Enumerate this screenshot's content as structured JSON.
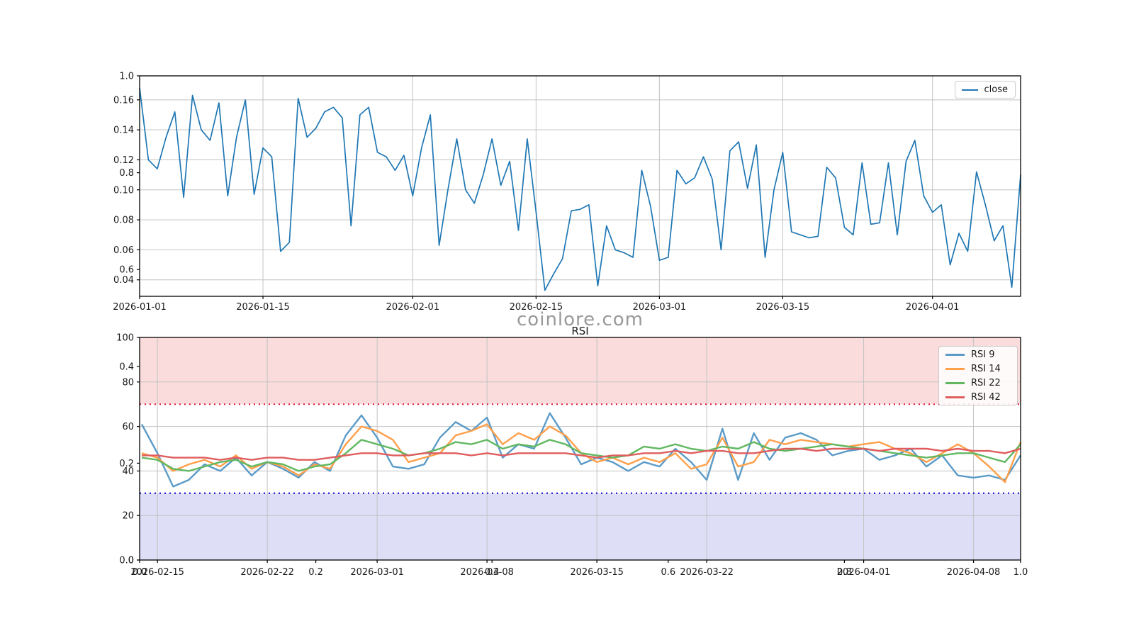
{
  "watermark_text": "coinlore.com",
  "colors": {
    "close_line": "#1f77b4",
    "rsi9": "#5B9BC8",
    "rsi14": "#FF9F4A",
    "rsi22": "#61B861",
    "rsi42": "#E05D5E",
    "overbought_dotted": "#DC143C",
    "oversold_dotted": "#0000CC",
    "overbought_band": "#FADCDC",
    "oversold_band": "#DEDEF6",
    "grid": "#C3C3C3",
    "spine": "#000000",
    "tick_text": "#1a1a1a",
    "watermark": "#999999"
  },
  "overlay_axis": {
    "x_labels": [
      "0.0",
      "0.2",
      "0.4",
      "0.6",
      "0.8",
      "1.0"
    ],
    "y_labels": [
      "0.0",
      "0.2",
      "0.4",
      "0.6",
      "0.8",
      "1.0"
    ]
  },
  "chart_data": [
    {
      "type": "line",
      "name": "price-chart",
      "legend": [
        {
          "label": "close"
        }
      ],
      "x_start_date": "2026-01-01",
      "x_ticks": [
        {
          "day": 0,
          "label": "2026-01-01"
        },
        {
          "day": 14,
          "label": "2026-01-15"
        },
        {
          "day": 31,
          "label": "2026-02-01"
        },
        {
          "day": 45,
          "label": "2026-02-15"
        },
        {
          "day": 59,
          "label": "2026-03-01"
        },
        {
          "day": 73,
          "label": "2026-03-15"
        },
        {
          "day": 90,
          "label": "2026-04-01"
        }
      ],
      "y_ticks": [
        {
          "v": 0.04,
          "label": "0.04"
        },
        {
          "v": 0.06,
          "label": "0.06"
        },
        {
          "v": 0.08,
          "label": "0.08"
        },
        {
          "v": 0.1,
          "label": "0.10"
        },
        {
          "v": 0.12,
          "label": "0.12"
        },
        {
          "v": 0.14,
          "label": "0.14"
        },
        {
          "v": 0.16,
          "label": "0.16"
        }
      ],
      "ylim": [
        0.029,
        0.176
      ],
      "x_days_range": [
        0,
        100
      ],
      "grid": true,
      "series": [
        {
          "name": "close",
          "values": [
            0.168,
            0.12,
            0.114,
            0.135,
            0.152,
            0.095,
            0.163,
            0.14,
            0.133,
            0.158,
            0.096,
            0.135,
            0.16,
            0.097,
            0.128,
            0.122,
            0.059,
            0.065,
            0.161,
            0.135,
            0.141,
            0.152,
            0.155,
            0.148,
            0.076,
            0.15,
            0.155,
            0.125,
            0.122,
            0.113,
            0.123,
            0.096,
            0.128,
            0.15,
            0.063,
            0.1,
            0.134,
            0.1,
            0.091,
            0.11,
            0.134,
            0.103,
            0.119,
            0.073,
            0.134,
            0.085,
            0.033,
            0.044,
            0.054,
            0.086,
            0.087,
            0.09,
            0.036,
            0.076,
            0.06,
            0.058,
            0.055,
            0.113,
            0.089,
            0.053,
            0.055,
            0.113,
            0.104,
            0.108,
            0.122,
            0.107,
            0.06,
            0.126,
            0.132,
            0.101,
            0.13,
            0.055,
            0.1,
            0.125,
            0.072,
            0.07,
            0.068,
            0.069,
            0.115,
            0.108,
            0.075,
            0.07,
            0.118,
            0.077,
            0.078,
            0.118,
            0.07,
            0.119,
            0.133,
            0.096,
            0.085,
            0.09,
            0.05,
            0.071,
            0.059,
            0.112,
            0.09,
            0.066,
            0.076,
            0.035,
            0.11
          ]
        }
      ]
    },
    {
      "type": "line",
      "name": "rsi-chart",
      "title": "RSI",
      "legend": [
        {
          "label": "RSI 9"
        },
        {
          "label": "RSI 14"
        },
        {
          "label": "RSI 22"
        },
        {
          "label": "RSI 42"
        }
      ],
      "x_start_date": "2026-02-14",
      "x_ticks": [
        {
          "i": 1,
          "label": "2026-02-15"
        },
        {
          "i": 8,
          "label": "2026-02-22"
        },
        {
          "i": 15,
          "label": "2026-03-01"
        },
        {
          "i": 22,
          "label": "2026-03-08"
        },
        {
          "i": 29,
          "label": "2026-03-15"
        },
        {
          "i": 36,
          "label": "2026-03-22"
        },
        {
          "i": 46,
          "label": "2026-04-01"
        },
        {
          "i": 53,
          "label": "2026-04-08"
        }
      ],
      "y_ticks": [
        {
          "v": 0,
          "label": "0"
        },
        {
          "v": 20,
          "label": "20"
        },
        {
          "v": 40,
          "label": "40"
        },
        {
          "v": 60,
          "label": "60"
        },
        {
          "v": 80,
          "label": "80"
        },
        {
          "v": 100,
          "label": "100"
        }
      ],
      "ylim": [
        0,
        100
      ],
      "overbought_level": 70,
      "oversold_level": 30,
      "grid": true,
      "series": [
        {
          "name": "RSI 9",
          "values": [
            61,
            48,
            33,
            36,
            43,
            40,
            46,
            38,
            44,
            41,
            37,
            44,
            40,
            56,
            65,
            55,
            42,
            41,
            43,
            55,
            62,
            58,
            64,
            46,
            52,
            50,
            66,
            55,
            43,
            46,
            44,
            40,
            44,
            42,
            50,
            44,
            36,
            59,
            36,
            57,
            45,
            55,
            57,
            54,
            47,
            49,
            50,
            45,
            47,
            50,
            42,
            47,
            38,
            37,
            38,
            36,
            47
          ]
        },
        {
          "name": "RSI 14",
          "values": [
            48,
            46,
            40,
            43,
            45,
            42,
            47,
            41,
            44,
            42,
            38,
            43,
            41,
            52,
            60,
            58,
            54,
            44,
            46,
            48,
            56,
            58,
            61,
            52,
            57,
            54,
            60,
            56,
            48,
            44,
            46,
            43,
            46,
            44,
            48,
            41,
            43,
            55,
            42,
            44,
            54,
            52,
            54,
            53,
            52,
            51,
            52,
            53,
            50,
            48,
            44,
            48,
            52,
            48,
            42,
            35,
            53
          ]
        },
        {
          "name": "RSI 22",
          "values": [
            46,
            45,
            41,
            40,
            42,
            44,
            45,
            42,
            44,
            43,
            40,
            42,
            43,
            48,
            54,
            52,
            50,
            47,
            48,
            50,
            53,
            52,
            54,
            50,
            52,
            51,
            54,
            52,
            48,
            47,
            46,
            47,
            51,
            50,
            52,
            50,
            49,
            51,
            50,
            53,
            50,
            49,
            50,
            51,
            52,
            51,
            50,
            49,
            48,
            47,
            46,
            47,
            48,
            48,
            46,
            44,
            52
          ]
        },
        {
          "name": "RSI 42",
          "values": [
            47,
            47,
            46,
            46,
            46,
            45,
            46,
            45,
            46,
            46,
            45,
            45,
            46,
            47,
            48,
            48,
            47,
            47,
            48,
            48,
            48,
            47,
            48,
            47,
            48,
            48,
            48,
            48,
            47,
            46,
            47,
            47,
            48,
            48,
            49,
            48,
            49,
            49,
            48,
            48,
            49,
            50,
            50,
            49,
            50,
            50,
            50,
            49,
            50,
            50,
            50,
            49,
            50,
            49,
            49,
            48,
            50
          ]
        }
      ]
    }
  ]
}
